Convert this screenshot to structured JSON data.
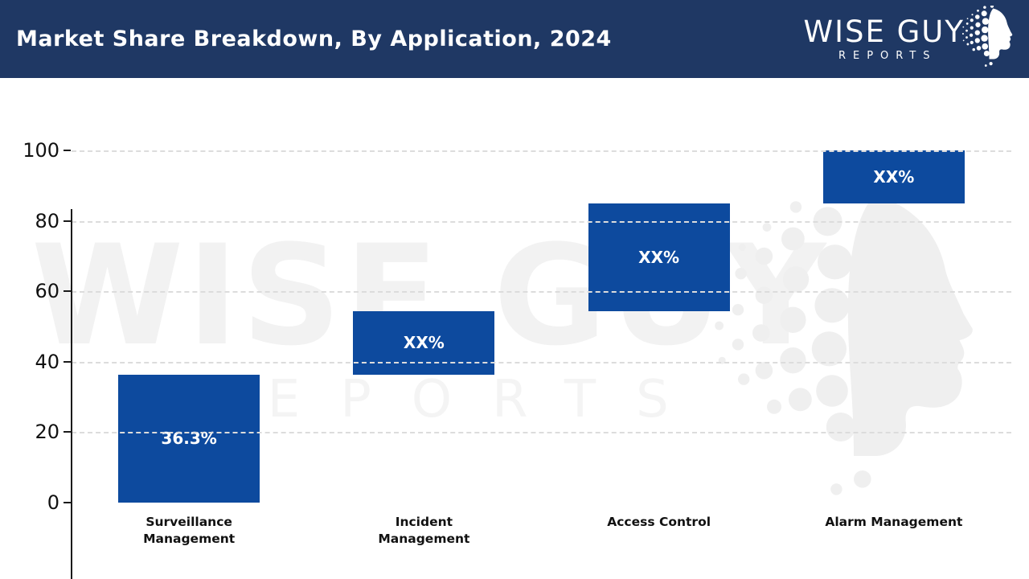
{
  "header": {
    "title": "Market Share Breakdown, By Application, 2024",
    "bg_color": "#1f3864",
    "logo": {
      "line1": "WISE GUY",
      "line2": "REPORTS"
    }
  },
  "watermark": {
    "line1": "WISE GUY",
    "line2": "REPORTS"
  },
  "chart_data": {
    "type": "bar",
    "subtype": "waterfall",
    "title": "Market Share Breakdown, By Application, 2024",
    "categories": [
      "Surveillance\nManagement",
      "Incident\nManagement",
      "Access Control",
      "Alarm Management"
    ],
    "bars": [
      {
        "category": "Surveillance\nManagement",
        "start": 0,
        "end": 36.3,
        "label": "36.3%"
      },
      {
        "category": "Incident\nManagement",
        "start": 36.3,
        "end": 54.4,
        "label": "XX%"
      },
      {
        "category": "Access Control",
        "start": 54.4,
        "end": 84.8,
        "label": "XX%"
      },
      {
        "category": "Alarm Management",
        "start": 84.8,
        "end": 100,
        "label": "XX%"
      }
    ],
    "xlabel": "",
    "ylabel": "",
    "y_ticks": [
      0,
      20,
      40,
      60,
      80,
      100
    ],
    "ylim": [
      0,
      105
    ],
    "grid": true,
    "grid_style": "dashed",
    "grid_over_bars": true,
    "legend": "none",
    "bar_color": "#0d4a9e",
    "label_color": "#ffffff",
    "grid_color": "#dcdcdc",
    "axis_color": "#1a1a1a"
  }
}
